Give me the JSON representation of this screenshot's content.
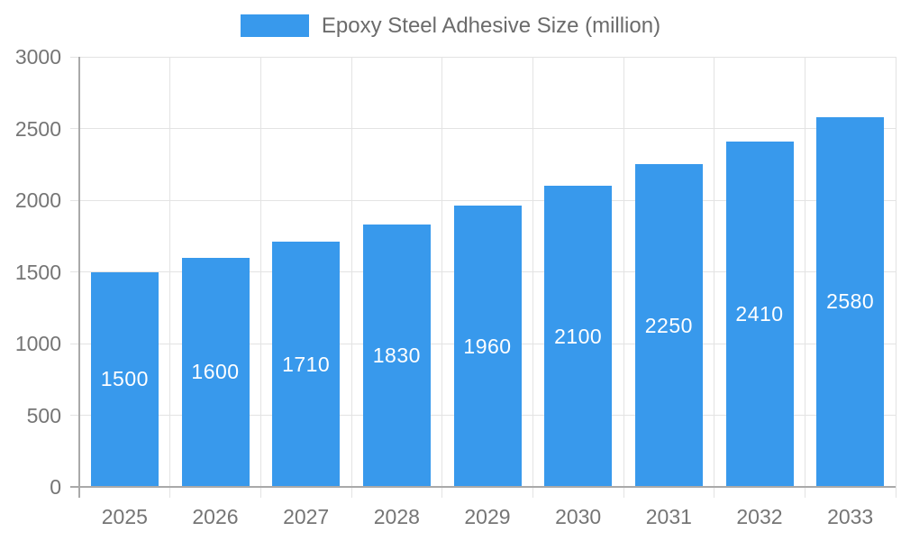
{
  "chart_data": {
    "type": "bar",
    "title": "",
    "categories": [
      "2025",
      "2026",
      "2027",
      "2028",
      "2029",
      "2030",
      "2031",
      "2032",
      "2033"
    ],
    "series": [
      {
        "name": "Epoxy Steel Adhesive Size (million)",
        "values": [
          1500,
          1600,
          1710,
          1830,
          1960,
          2100,
          2250,
          2410,
          2580
        ]
      }
    ],
    "bar_value_labels": [
      "1500",
      "1600",
      "1710",
      "1830",
      "1960",
      "2100",
      "2250",
      "2410",
      "2580"
    ],
    "xlabel": "",
    "ylabel": "",
    "ylim": [
      0,
      3000
    ],
    "yticks": [
      0,
      500,
      1000,
      1500,
      2000,
      2500,
      3000
    ],
    "ytick_labels": [
      "0",
      "500",
      "1000",
      "1500",
      "2000",
      "2500",
      "3000"
    ],
    "grid": "on",
    "legend_position": "top-center",
    "value_label_position": "inside-center",
    "colors": {
      "bar": "#3899EC",
      "bar_label": "#FFFFFF",
      "gridline": "#E3E3E3",
      "axis_line": "#A9A9A9",
      "axis_text": "#757575",
      "legend_text": "#6B6B6B",
      "background": "#FFFFFF"
    }
  }
}
